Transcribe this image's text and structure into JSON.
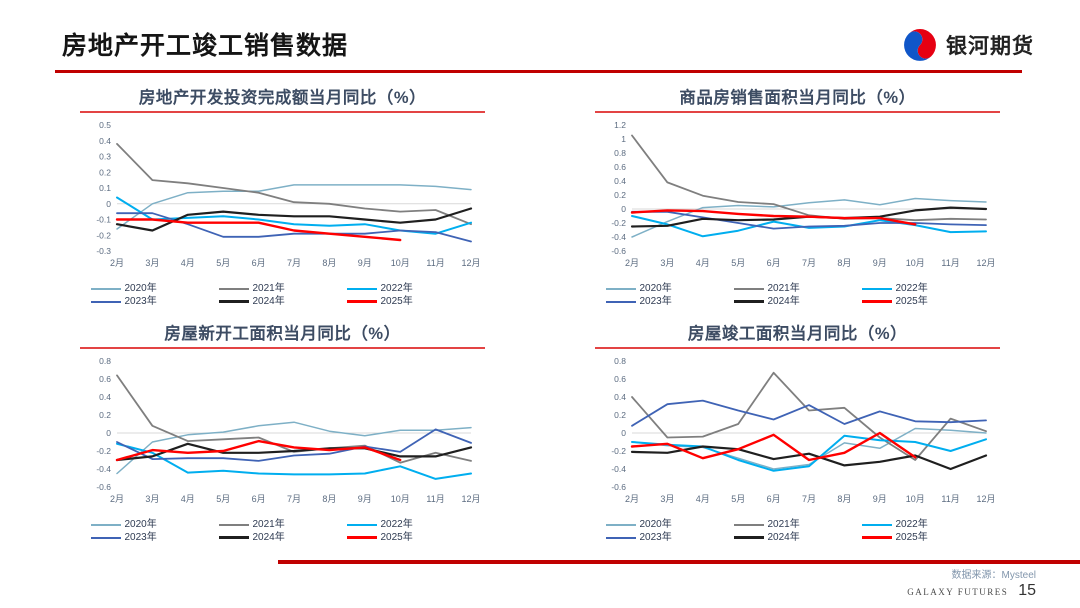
{
  "page": {
    "title": "房地产开工竣工销售数据",
    "logo_text": "银河期货",
    "source_note": "数据来源：Mysteel",
    "brand_footer": "GALAXY FUTURES",
    "page_number": "15",
    "accent_red": "#C00000",
    "underline_red": "#E34444"
  },
  "chart_data": [
    {
      "type": "line",
      "title": "房地产开发投资完成额当月同比（%）",
      "categories": [
        "2月",
        "3月",
        "4月",
        "5月",
        "6月",
        "7月",
        "8月",
        "9月",
        "10月",
        "11月",
        "12月"
      ],
      "ylim": [
        -0.3,
        0.5
      ],
      "yticks": [
        0.5,
        0.4,
        0.3,
        0.2,
        0.1,
        0,
        -0.1,
        -0.2,
        -0.3
      ],
      "grid": "zero-line-only",
      "legend_position": "bottom",
      "series": [
        {
          "name": "2020年",
          "color": "#7EB0C6",
          "width": 1.5,
          "values": [
            -0.16,
            0.0,
            0.07,
            0.08,
            0.08,
            0.12,
            0.12,
            0.12,
            0.12,
            0.11,
            0.09
          ]
        },
        {
          "name": "2021年",
          "color": "#7F7F7F",
          "width": 1.8,
          "values": [
            0.38,
            0.15,
            0.13,
            0.1,
            0.07,
            0.01,
            0.0,
            -0.03,
            -0.05,
            -0.04,
            -0.13
          ]
        },
        {
          "name": "2022年",
          "color": "#00AEEF",
          "width": 2,
          "values": [
            0.04,
            -0.1,
            -0.09,
            -0.08,
            -0.1,
            -0.13,
            -0.14,
            -0.13,
            -0.17,
            -0.19,
            -0.12
          ]
        },
        {
          "name": "2023年",
          "color": "#3F63B5",
          "width": 1.8,
          "values": [
            -0.06,
            -0.06,
            -0.13,
            -0.21,
            -0.21,
            -0.19,
            -0.19,
            -0.19,
            -0.17,
            -0.18,
            -0.24
          ]
        },
        {
          "name": "2024年",
          "color": "#1F1F1F",
          "width": 2.2,
          "values": [
            -0.13,
            -0.17,
            -0.07,
            -0.05,
            -0.07,
            -0.08,
            -0.08,
            -0.1,
            -0.12,
            -0.1,
            -0.03
          ]
        },
        {
          "name": "2025年",
          "color": "#FF0000",
          "width": 2.4,
          "values": [
            -0.1,
            -0.1,
            -0.12,
            -0.12,
            -0.12,
            -0.17,
            -0.19,
            -0.21,
            -0.23
          ]
        }
      ]
    },
    {
      "type": "line",
      "title": "商品房销售面积当月同比（%）",
      "categories": [
        "2月",
        "3月",
        "4月",
        "5月",
        "6月",
        "7月",
        "8月",
        "9月",
        "10月",
        "11月",
        "12月"
      ],
      "ylim": [
        -0.6,
        1.2
      ],
      "yticks": [
        1.2,
        1,
        0.8,
        0.6,
        0.4,
        0.2,
        0,
        -0.2,
        -0.4,
        -0.6
      ],
      "grid": "zero-line-only",
      "legend_position": "bottom",
      "series": [
        {
          "name": "2020年",
          "color": "#7EB0C6",
          "width": 1.5,
          "values": [
            -0.4,
            -0.18,
            0.02,
            0.05,
            0.03,
            0.09,
            0.13,
            0.06,
            0.15,
            0.12,
            0.1
          ]
        },
        {
          "name": "2021年",
          "color": "#7F7F7F",
          "width": 1.8,
          "values": [
            1.05,
            0.38,
            0.19,
            0.1,
            0.07,
            -0.09,
            -0.14,
            -0.13,
            -0.16,
            -0.14,
            -0.15
          ]
        },
        {
          "name": "2022年",
          "color": "#00AEEF",
          "width": 2,
          "values": [
            -0.1,
            -0.22,
            -0.39,
            -0.31,
            -0.18,
            -0.27,
            -0.25,
            -0.16,
            -0.23,
            -0.33,
            -0.32
          ]
        },
        {
          "name": "2023年",
          "color": "#3F63B5",
          "width": 1.8,
          "values": [
            -0.04,
            -0.04,
            -0.12,
            -0.2,
            -0.28,
            -0.25,
            -0.24,
            -0.2,
            -0.2,
            -0.22,
            -0.23
          ]
        },
        {
          "name": "2024年",
          "color": "#1F1F1F",
          "width": 2.2,
          "values": [
            -0.25,
            -0.24,
            -0.14,
            -0.16,
            -0.15,
            -0.11,
            -0.13,
            -0.11,
            -0.02,
            0.02,
            0.0
          ]
        },
        {
          "name": "2025年",
          "color": "#FF0000",
          "width": 2.4,
          "values": [
            -0.05,
            -0.02,
            -0.03,
            -0.07,
            -0.1,
            -0.11,
            -0.13,
            -0.13,
            -0.22
          ]
        }
      ]
    },
    {
      "type": "line",
      "title": "房屋新开工面积当月同比（%）",
      "categories": [
        "2月",
        "3月",
        "4月",
        "5月",
        "6月",
        "7月",
        "8月",
        "9月",
        "10月",
        "11月",
        "12月"
      ],
      "ylim": [
        -0.6,
        0.8
      ],
      "yticks": [
        0.8,
        0.6,
        0.4,
        0.2,
        0,
        -0.2,
        -0.4,
        -0.6
      ],
      "grid": "zero-line-only",
      "legend_position": "bottom",
      "series": [
        {
          "name": "2020年",
          "color": "#7EB0C6",
          "width": 1.5,
          "values": [
            -0.45,
            -0.1,
            -0.02,
            0.01,
            0.08,
            0.12,
            0.02,
            -0.03,
            0.03,
            0.03,
            0.06
          ]
        },
        {
          "name": "2021年",
          "color": "#7F7F7F",
          "width": 1.8,
          "values": [
            0.64,
            0.08,
            -0.09,
            -0.07,
            -0.05,
            -0.21,
            -0.17,
            -0.14,
            -0.33,
            -0.22,
            -0.31
          ]
        },
        {
          "name": "2022年",
          "color": "#00AEEF",
          "width": 2,
          "values": [
            -0.12,
            -0.22,
            -0.44,
            -0.42,
            -0.45,
            -0.46,
            -0.46,
            -0.45,
            -0.37,
            -0.51,
            -0.45
          ]
        },
        {
          "name": "2023年",
          "color": "#3F63B5",
          "width": 1.8,
          "values": [
            -0.1,
            -0.29,
            -0.28,
            -0.28,
            -0.31,
            -0.25,
            -0.23,
            -0.15,
            -0.21,
            0.04,
            -0.11
          ]
        },
        {
          "name": "2024年",
          "color": "#1F1F1F",
          "width": 2.2,
          "values": [
            -0.3,
            -0.26,
            -0.12,
            -0.22,
            -0.22,
            -0.2,
            -0.17,
            -0.17,
            -0.26,
            -0.26,
            -0.16
          ]
        },
        {
          "name": "2025年",
          "color": "#FF0000",
          "width": 2.4,
          "values": [
            -0.3,
            -0.19,
            -0.22,
            -0.2,
            -0.09,
            -0.16,
            -0.19,
            -0.16,
            -0.3
          ]
        }
      ]
    },
    {
      "type": "line",
      "title": "房屋竣工面积当月同比（%）",
      "categories": [
        "2月",
        "3月",
        "4月",
        "5月",
        "6月",
        "7月",
        "8月",
        "9月",
        "10月",
        "11月",
        "12月"
      ],
      "ylim": [
        -0.6,
        0.8
      ],
      "yticks": [
        0.8,
        0.6,
        0.4,
        0.2,
        0,
        -0.2,
        -0.4,
        -0.6
      ],
      "grid": "zero-line-only",
      "legend_position": "bottom",
      "series": [
        {
          "name": "2020年",
          "color": "#7EB0C6",
          "width": 1.5,
          "values": [
            -0.1,
            -0.14,
            -0.16,
            -0.28,
            -0.4,
            -0.35,
            -0.11,
            -0.17,
            0.05,
            0.03,
            0.0
          ]
        },
        {
          "name": "2021年",
          "color": "#7F7F7F",
          "width": 1.8,
          "values": [
            0.4,
            -0.05,
            -0.04,
            0.1,
            0.67,
            0.25,
            0.28,
            -0.05,
            -0.3,
            0.16,
            0.02
          ]
        },
        {
          "name": "2022年",
          "color": "#00AEEF",
          "width": 2,
          "values": [
            -0.1,
            -0.13,
            -0.15,
            -0.3,
            -0.42,
            -0.37,
            -0.03,
            -0.08,
            -0.1,
            -0.2,
            -0.07
          ]
        },
        {
          "name": "2023年",
          "color": "#3F63B5",
          "width": 1.8,
          "values": [
            0.08,
            0.32,
            0.36,
            0.25,
            0.15,
            0.31,
            0.1,
            0.24,
            0.13,
            0.12,
            0.14
          ]
        },
        {
          "name": "2024年",
          "color": "#1F1F1F",
          "width": 2.2,
          "values": [
            -0.21,
            -0.22,
            -0.15,
            -0.18,
            -0.29,
            -0.23,
            -0.36,
            -0.32,
            -0.25,
            -0.4,
            -0.25
          ]
        },
        {
          "name": "2025年",
          "color": "#FF0000",
          "width": 2.4,
          "values": [
            -0.15,
            -0.12,
            -0.28,
            -0.18,
            -0.02,
            -0.3,
            -0.22,
            0.0,
            -0.27
          ]
        }
      ]
    }
  ]
}
